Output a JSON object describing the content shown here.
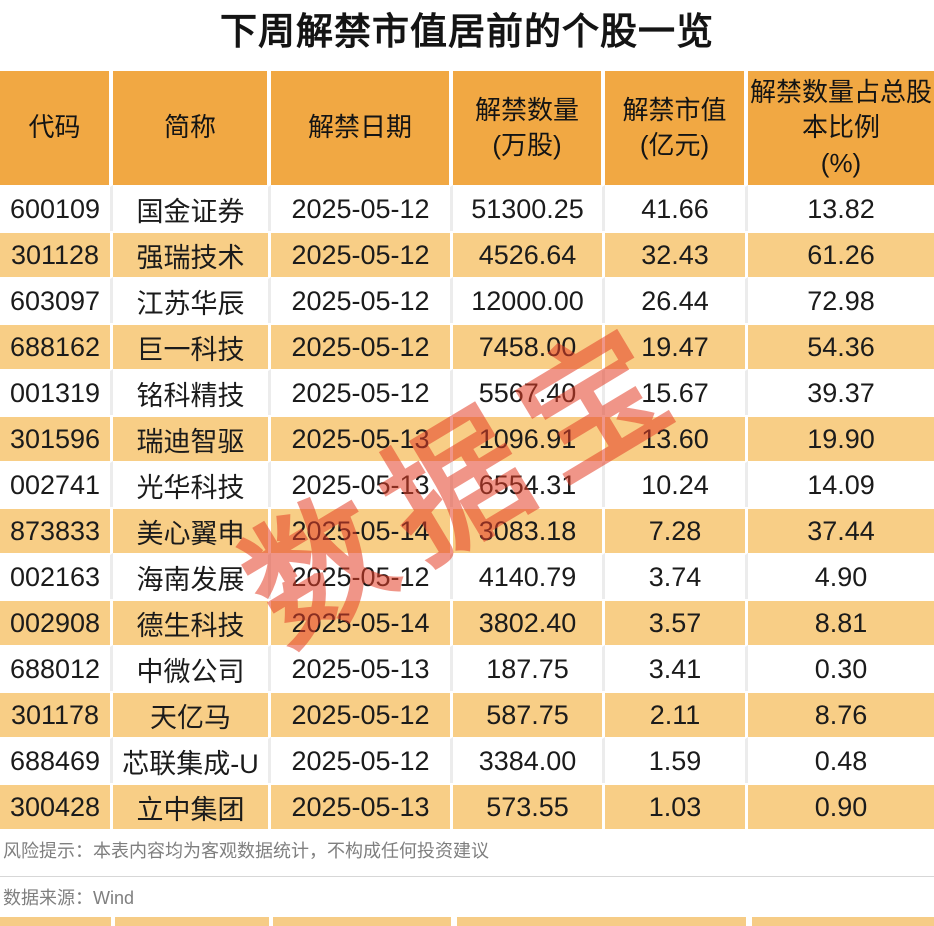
{
  "title": "下周解禁市值居前的个股一览",
  "colors": {
    "title_text": "#141414",
    "header_bg": "#F1A843",
    "row_alt_bg": "#F8CE86",
    "sliver_bg": "#F6CC86",
    "watermark_color": "rgba(227,62,38,0.55)",
    "footer_text": "#7f7f7f",
    "divider": "#d7d7d7"
  },
  "watermark": {
    "text": "数据宝"
  },
  "table": {
    "columns": [
      {
        "key": "code",
        "label": "代码"
      },
      {
        "key": "name",
        "label": "简称"
      },
      {
        "key": "date",
        "label": "解禁日期"
      },
      {
        "key": "qty",
        "label": "解禁数量\n(万股)"
      },
      {
        "key": "mcap",
        "label": "解禁市值\n(亿元)"
      },
      {
        "key": "ratio",
        "label": "解禁数量占总股\n本比例\n(%)"
      }
    ],
    "rows": [
      {
        "code": "600109",
        "name": "国金证券",
        "date": "2025-05-12",
        "qty": "51300.25",
        "mcap": "41.66",
        "ratio": "13.82"
      },
      {
        "code": "301128",
        "name": "强瑞技术",
        "date": "2025-05-12",
        "qty": "4526.64",
        "mcap": "32.43",
        "ratio": "61.26"
      },
      {
        "code": "603097",
        "name": "江苏华辰",
        "date": "2025-05-12",
        "qty": "12000.00",
        "mcap": "26.44",
        "ratio": "72.98"
      },
      {
        "code": "688162",
        "name": "巨一科技",
        "date": "2025-05-12",
        "qty": "7458.00",
        "mcap": "19.47",
        "ratio": "54.36"
      },
      {
        "code": "001319",
        "name": "铭科精技",
        "date": "2025-05-12",
        "qty": "5567.40",
        "mcap": "15.67",
        "ratio": "39.37"
      },
      {
        "code": "301596",
        "name": "瑞迪智驱",
        "date": "2025-05-13",
        "qty": "1096.91",
        "mcap": "13.60",
        "ratio": "19.90"
      },
      {
        "code": "002741",
        "name": "光华科技",
        "date": "2025-05-13",
        "qty": "6554.31",
        "mcap": "10.24",
        "ratio": "14.09"
      },
      {
        "code": "873833",
        "name": "美心翼申",
        "date": "2025-05-14",
        "qty": "3083.18",
        "mcap": "7.28",
        "ratio": "37.44"
      },
      {
        "code": "002163",
        "name": "海南发展",
        "date": "2025-05-12",
        "qty": "4140.79",
        "mcap": "3.74",
        "ratio": "4.90"
      },
      {
        "code": "002908",
        "name": "德生科技",
        "date": "2025-05-14",
        "qty": "3802.40",
        "mcap": "3.57",
        "ratio": "8.81"
      },
      {
        "code": "688012",
        "name": "中微公司",
        "date": "2025-05-13",
        "qty": "187.75",
        "mcap": "3.41",
        "ratio": "0.30"
      },
      {
        "code": "301178",
        "name": "天亿马",
        "date": "2025-05-12",
        "qty": "587.75",
        "mcap": "2.11",
        "ratio": "8.76"
      },
      {
        "code": "688469",
        "name": "芯联集成-U",
        "date": "2025-05-12",
        "qty": "3384.00",
        "mcap": "1.59",
        "ratio": "0.48"
      },
      {
        "code": "300428",
        "name": "立中集团",
        "date": "2025-05-13",
        "qty": "573.55",
        "mcap": "1.03",
        "ratio": "0.90"
      }
    ]
  },
  "footer": {
    "risk_note": "风险提示：本表内容均为客观数据统计，不构成任何投资建议",
    "data_source": "数据来源：Wind"
  }
}
